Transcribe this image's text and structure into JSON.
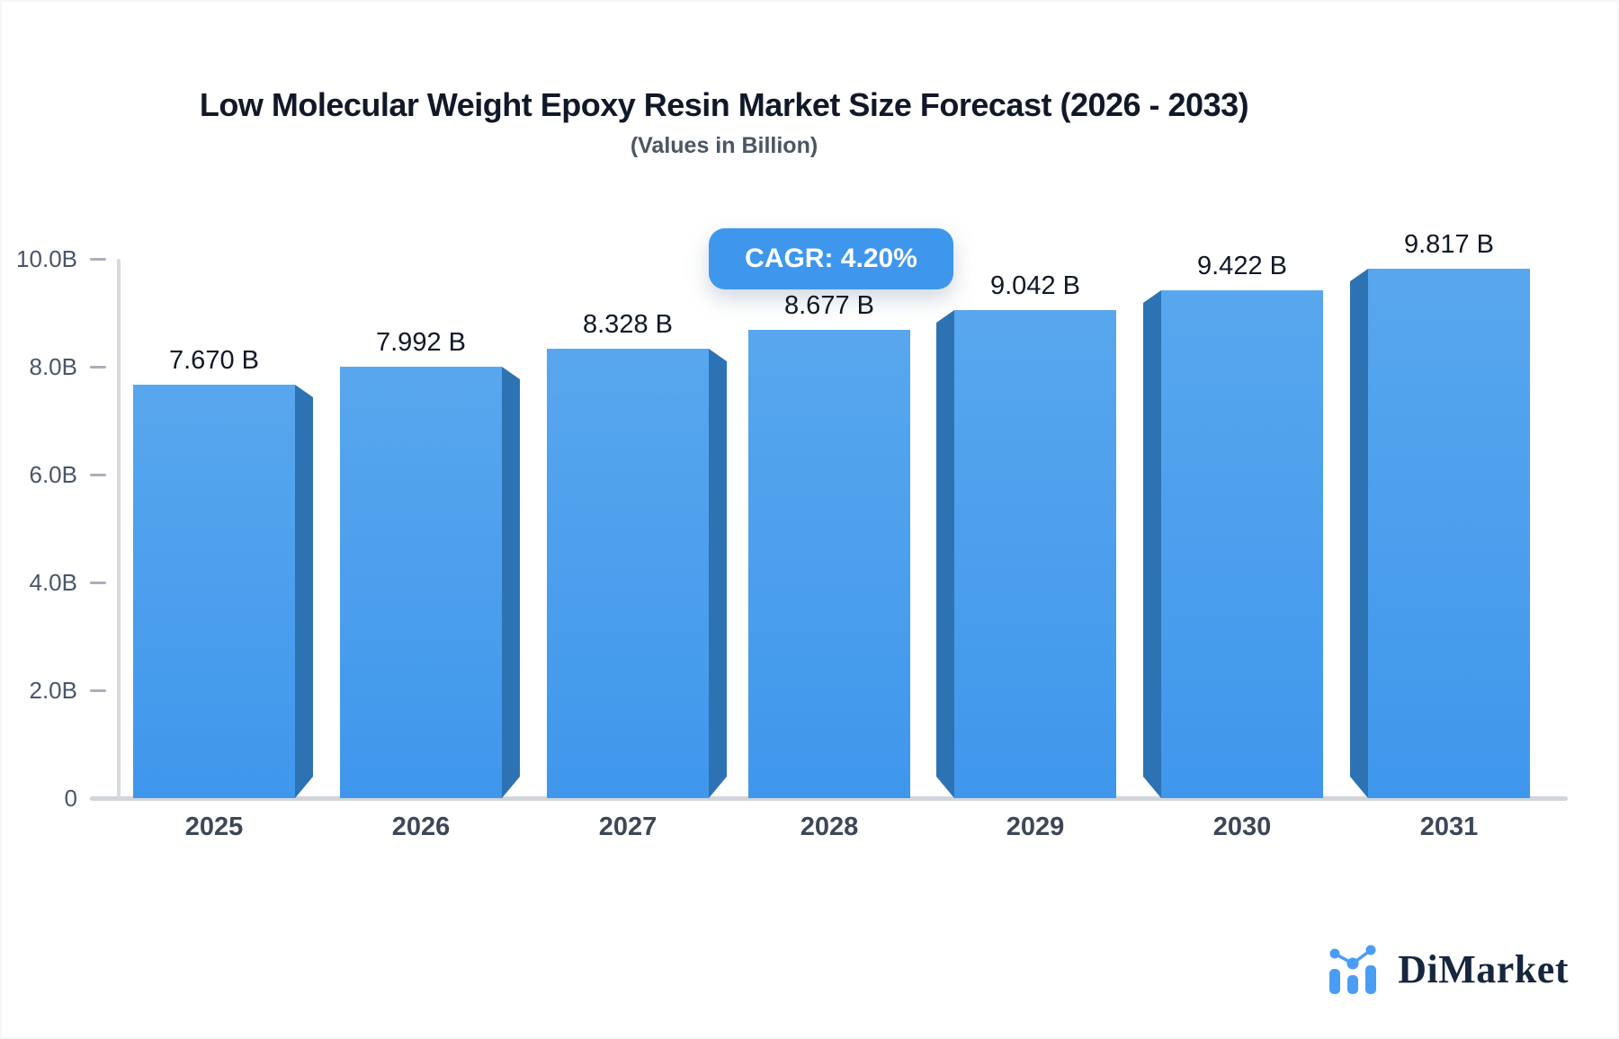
{
  "header": {
    "title": "Low Molecular Weight Epoxy Resin Market Size Forecast (2026 - 2033)",
    "subtitle": "(Values in Billion)"
  },
  "badge": {
    "label": "CAGR: 4.20%"
  },
  "chart_data": {
    "type": "bar",
    "title": "Low Molecular Weight Epoxy Resin Market Size Forecast (2026 - 2033)",
    "subtitle": "(Values in Billion)",
    "categories": [
      "2025",
      "2026",
      "2027",
      "2028",
      "2029",
      "2030",
      "2031"
    ],
    "values": [
      7.67,
      7.992,
      8.328,
      8.677,
      9.042,
      9.422,
      9.817
    ],
    "value_labels": [
      "7.670 B",
      "7.992 B",
      "8.328 B",
      "8.677 B",
      "9.042 B",
      "9.422 B",
      "9.817 B"
    ],
    "cagr": "4.20%",
    "ylim": [
      0,
      10
    ],
    "y_ticks": [
      {
        "label": "10.0B",
        "value": 10
      },
      {
        "label": "8.0B",
        "value": 8
      },
      {
        "label": "6.0B",
        "value": 6
      },
      {
        "label": "4.0B",
        "value": 4
      },
      {
        "label": "2.0B",
        "value": 2
      },
      {
        "label": "0",
        "value": 0
      }
    ],
    "grid": "off",
    "legend": "none",
    "colors": {
      "bar_top": "#58a7ee",
      "bar_bottom": "#3f97ec",
      "bar_side": "#2d73b3",
      "badge_bg": "#3f97ed",
      "axis_line": "#d7dade",
      "tick": "#a9b0ba"
    }
  },
  "footer": {
    "brand": "DiMarket"
  }
}
